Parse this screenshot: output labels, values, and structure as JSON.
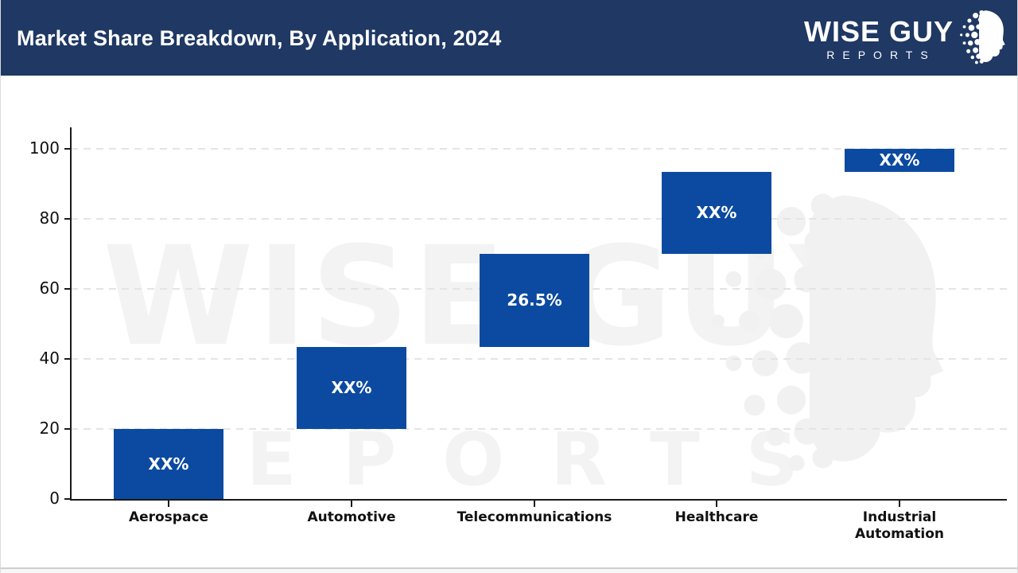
{
  "header": {
    "title": "Market Share Breakdown, By Application, 2024",
    "logo": {
      "line1": "WISE GUY",
      "line2": "REPORTS"
    }
  },
  "watermark": {
    "line1": "WISE GUY",
    "line2": "REPORTS"
  },
  "chart_data": {
    "type": "bar",
    "variant": "waterfall",
    "title": "Market Share Breakdown, By Application, 2024",
    "categories": [
      "Aerospace",
      "Automotive",
      "Telecommunications",
      "Healthcare",
      "Industrial Automation"
    ],
    "segments": [
      {
        "category": "Aerospace",
        "start": 0,
        "end": 20,
        "label": "XX%"
      },
      {
        "category": "Automotive",
        "start": 20,
        "end": 43.5,
        "label": "XX%"
      },
      {
        "category": "Telecommunications",
        "start": 43.5,
        "end": 70,
        "label": "26.5%"
      },
      {
        "category": "Healthcare",
        "start": 70,
        "end": 93.5,
        "label": "XX%"
      },
      {
        "category": "Industrial Automation",
        "start": 93.5,
        "end": 100,
        "label": "XX%"
      }
    ],
    "yticks": [
      0,
      20,
      40,
      60,
      80,
      100
    ],
    "ylim": [
      0,
      106
    ],
    "xlabel": "",
    "ylabel": "",
    "grid": "horizontal-dashed",
    "legend": "none",
    "bar_color": "#0B4AA0",
    "bar_label_color": "#FFFFFF",
    "header_color": "#1F3864"
  }
}
